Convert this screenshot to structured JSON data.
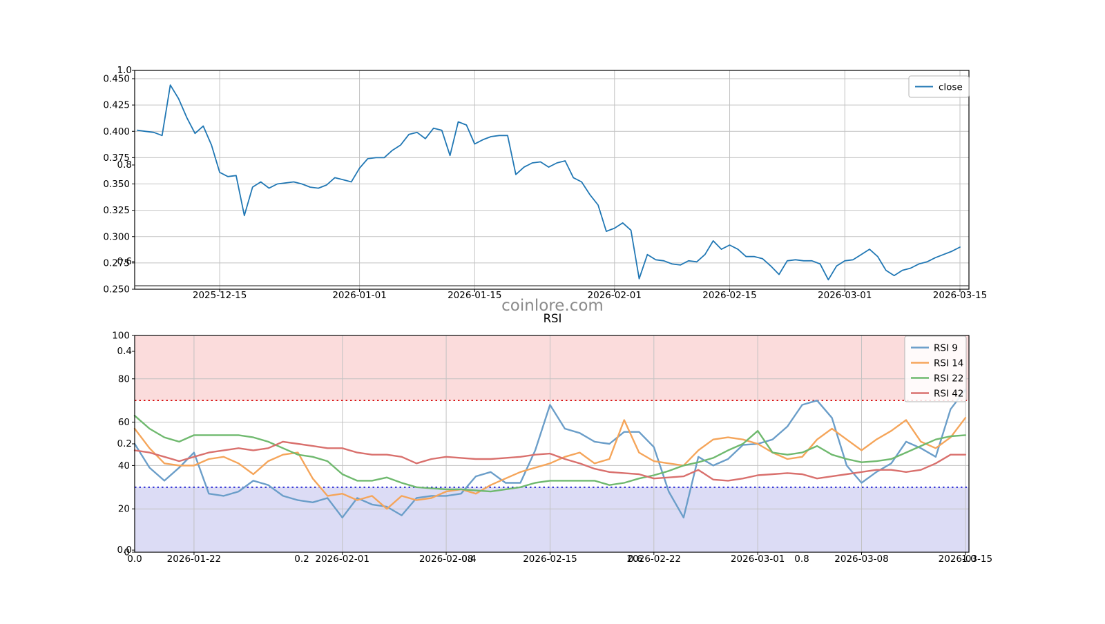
{
  "watermark": "coinlore.com",
  "price_chart": {
    "legend_label": "close"
  },
  "rsi_chart": {
    "title": "RSI",
    "legend": [
      {
        "label": "RSI 9",
        "color": "#6b9ec9"
      },
      {
        "label": "RSI 14",
        "color": "#f5a55a"
      },
      {
        "label": "RSI 22",
        "color": "#6fb96e"
      },
      {
        "label": "RSI 42",
        "color": "#d9706d"
      }
    ],
    "overbought_line": 70,
    "oversold_line": 30
  },
  "overlay_axis": {
    "y_labels": [
      "1.0",
      "0.8",
      "0.6",
      "0.4",
      "0.2",
      "0.0"
    ],
    "x_labels": [
      "0.0",
      "0.2",
      "0.4",
      "0.6",
      "0.8",
      "1.0"
    ]
  },
  "colors": {
    "close_line": "#2077b4",
    "grid": "#c2c2c2",
    "spine": "#000000",
    "overbought_band": "#fbdcdc",
    "oversold_band": "#dcdcf5",
    "overbought_dotted": "#d40000",
    "oversold_dotted": "#0000cd",
    "legend_border": "#b3b3b3"
  },
  "chart_data": [
    {
      "type": "line",
      "title": "",
      "ylabel": "",
      "xlabel": "",
      "grid": true,
      "legend_position": "upper right",
      "ylim": [
        0.25,
        0.458
      ],
      "yticks": [
        {
          "label": "0.450",
          "value": 0.45
        },
        {
          "label": "0.425",
          "value": 0.425
        },
        {
          "label": "0.400",
          "value": 0.4
        },
        {
          "label": "0.375",
          "value": 0.375
        },
        {
          "label": "0.350",
          "value": 0.35
        },
        {
          "label": "0.325",
          "value": 0.325
        },
        {
          "label": "0.300",
          "value": 0.3
        },
        {
          "label": "0.275",
          "value": 0.275
        },
        {
          "label": "0.250",
          "value": 0.25
        }
      ],
      "xticks": [
        {
          "label": "2025-12-15",
          "index": 10
        },
        {
          "label": "2026-01-01",
          "index": 27
        },
        {
          "label": "2026-01-15",
          "index": 41
        },
        {
          "label": "2026-02-01",
          "index": 58
        },
        {
          "label": "2026-02-15",
          "index": 72
        },
        {
          "label": "2026-03-01",
          "index": 86
        },
        {
          "label": "2026-03-15",
          "index": 100
        }
      ],
      "x": [
        "2025-12-05",
        "2025-12-06",
        "2025-12-07",
        "2025-12-08",
        "2025-12-09",
        "2025-12-10",
        "2025-12-11",
        "2025-12-12",
        "2025-12-13",
        "2025-12-14",
        "2025-12-15",
        "2025-12-16",
        "2025-12-17",
        "2025-12-18",
        "2025-12-19",
        "2025-12-20",
        "2025-12-21",
        "2025-12-22",
        "2025-12-23",
        "2025-12-24",
        "2025-12-25",
        "2025-12-26",
        "2025-12-27",
        "2025-12-28",
        "2025-12-29",
        "2025-12-30",
        "2025-12-31",
        "2026-01-01",
        "2026-01-02",
        "2026-01-03",
        "2026-01-04",
        "2026-01-05",
        "2026-01-06",
        "2026-01-07",
        "2026-01-08",
        "2026-01-09",
        "2026-01-10",
        "2026-01-11",
        "2026-01-12",
        "2026-01-13",
        "2026-01-14",
        "2026-01-15",
        "2026-01-16",
        "2026-01-17",
        "2026-01-18",
        "2026-01-19",
        "2026-01-20",
        "2026-01-21",
        "2026-01-22",
        "2026-01-23",
        "2026-01-24",
        "2026-01-25",
        "2026-01-26",
        "2026-01-27",
        "2026-01-28",
        "2026-01-29",
        "2026-01-30",
        "2026-01-31",
        "2026-02-01",
        "2026-02-02",
        "2026-02-03",
        "2026-02-04",
        "2026-02-05",
        "2026-02-06",
        "2026-02-07",
        "2026-02-08",
        "2026-02-09",
        "2026-02-10",
        "2026-02-11",
        "2026-02-12",
        "2026-02-13",
        "2026-02-14",
        "2026-02-15",
        "2026-02-16",
        "2026-02-17",
        "2026-02-18",
        "2026-02-19",
        "2026-02-20",
        "2026-02-21",
        "2026-02-22",
        "2026-02-23",
        "2026-02-24",
        "2026-02-25",
        "2026-02-26",
        "2026-02-27",
        "2026-02-28",
        "2026-03-01",
        "2026-03-02",
        "2026-03-03",
        "2026-03-04",
        "2026-03-05",
        "2026-03-06",
        "2026-03-07",
        "2026-03-08",
        "2026-03-09",
        "2026-03-10",
        "2026-03-11",
        "2026-03-12",
        "2026-03-13",
        "2026-03-14",
        "2026-03-15"
      ],
      "series": [
        {
          "name": "close",
          "color": "#2077b4",
          "width": 1.8,
          "values": [
            0.401,
            0.4,
            0.399,
            0.396,
            0.444,
            0.431,
            0.413,
            0.398,
            0.405,
            0.387,
            0.361,
            0.357,
            0.358,
            0.32,
            0.347,
            0.352,
            0.346,
            0.35,
            0.351,
            0.352,
            0.35,
            0.347,
            0.346,
            0.349,
            0.356,
            0.354,
            0.352,
            0.365,
            0.374,
            0.375,
            0.375,
            0.382,
            0.387,
            0.397,
            0.399,
            0.393,
            0.403,
            0.401,
            0.377,
            0.409,
            0.406,
            0.388,
            0.392,
            0.395,
            0.396,
            0.396,
            0.359,
            0.366,
            0.37,
            0.371,
            0.366,
            0.37,
            0.372,
            0.356,
            0.352,
            0.34,
            0.33,
            0.305,
            0.308,
            0.313,
            0.306,
            0.26,
            0.283,
            0.278,
            0.277,
            0.274,
            0.273,
            0.277,
            0.276,
            0.283,
            0.296,
            0.288,
            0.292,
            0.288,
            0.281,
            0.281,
            0.279,
            0.272,
            0.264,
            0.277,
            0.278,
            0.277,
            0.277,
            0.274,
            0.259,
            0.272,
            0.277,
            0.278,
            0.283,
            0.288,
            0.281,
            0.268,
            0.263,
            0.268,
            0.27,
            0.274,
            0.276,
            0.28,
            0.283,
            0.286,
            0.29
          ]
        }
      ]
    },
    {
      "type": "line",
      "title": "RSI",
      "ylabel": "",
      "xlabel": "",
      "grid": true,
      "legend_position": "upper right",
      "ylim": [
        0,
        100
      ],
      "yticks": [
        {
          "label": "100",
          "value": 100
        },
        {
          "label": "80",
          "value": 80
        },
        {
          "label": "60",
          "value": 60
        },
        {
          "label": "40",
          "value": 40
        },
        {
          "label": "20",
          "value": 20
        },
        {
          "label": "0",
          "value": 0
        }
      ],
      "xticks": [
        {
          "label": "2026-01-22",
          "index": 4
        },
        {
          "label": "2026-02-01",
          "index": 14
        },
        {
          "label": "2026-02-08",
          "index": 21
        },
        {
          "label": "2026-02-15",
          "index": 28
        },
        {
          "label": "2026-02-22",
          "index": 35
        },
        {
          "label": "2026-03-01",
          "index": 42
        },
        {
          "label": "2026-03-08",
          "index": 49
        },
        {
          "label": "2026-03-15",
          "index": 56
        }
      ],
      "bands": [
        {
          "from": 70,
          "to": 100,
          "color": "#fbdcdc",
          "name": "overbought-band"
        },
        {
          "from": 0,
          "to": 30,
          "color": "#dcdcf5",
          "name": "oversold-band"
        }
      ],
      "hlines": [
        {
          "y": 70,
          "color": "#d40000",
          "name": "overbought-line"
        },
        {
          "y": 30,
          "color": "#0000cd",
          "name": "oversold-line"
        }
      ],
      "x": [
        "2026-01-18",
        "2026-01-19",
        "2026-01-20",
        "2026-01-21",
        "2026-01-22",
        "2026-01-23",
        "2026-01-24",
        "2026-01-25",
        "2026-01-26",
        "2026-01-27",
        "2026-01-28",
        "2026-01-29",
        "2026-01-30",
        "2026-01-31",
        "2026-02-01",
        "2026-02-02",
        "2026-02-03",
        "2026-02-04",
        "2026-02-05",
        "2026-02-06",
        "2026-02-07",
        "2026-02-08",
        "2026-02-09",
        "2026-02-10",
        "2026-02-11",
        "2026-02-12",
        "2026-02-13",
        "2026-02-14",
        "2026-02-15",
        "2026-02-16",
        "2026-02-17",
        "2026-02-18",
        "2026-02-19",
        "2026-02-20",
        "2026-02-21",
        "2026-02-22",
        "2026-02-23",
        "2026-02-24",
        "2026-02-25",
        "2026-02-26",
        "2026-02-27",
        "2026-02-28",
        "2026-03-01",
        "2026-03-02",
        "2026-03-03",
        "2026-03-04",
        "2026-03-05",
        "2026-03-06",
        "2026-03-07",
        "2026-03-08",
        "2026-03-09",
        "2026-03-10",
        "2026-03-11",
        "2026-03-12",
        "2026-03-13",
        "2026-03-14",
        "2026-03-15"
      ],
      "series": [
        {
          "name": "RSI 9",
          "color": "#6b9ec9",
          "width": 2.4,
          "values": [
            50,
            39,
            33,
            39,
            46,
            27,
            26,
            28,
            33,
            31,
            26,
            24,
            23,
            25,
            16,
            25,
            22,
            21,
            17,
            25,
            26,
            26,
            27,
            35,
            37,
            32,
            32,
            47,
            68,
            57,
            55,
            51,
            50,
            55.5,
            55.5,
            48.5,
            28,
            16,
            44,
            40,
            43,
            49.5,
            50,
            52,
            58,
            68,
            70,
            62,
            40,
            32,
            37,
            41,
            51,
            48,
            44,
            66,
            75
          ]
        },
        {
          "name": "RSI 14",
          "color": "#f5a55a",
          "width": 2.4,
          "values": [
            57,
            48,
            41,
            40,
            40,
            43,
            44,
            41,
            36,
            42,
            45,
            46,
            34,
            26,
            27,
            24,
            26,
            20,
            26,
            24,
            25,
            28,
            29,
            27,
            31,
            34,
            37,
            39,
            41,
            44,
            46,
            41,
            43,
            61,
            46,
            42,
            41,
            40,
            47,
            52,
            53,
            52,
            50,
            46,
            43,
            44,
            52,
            57,
            52,
            47,
            52,
            56,
            61,
            51,
            48,
            53,
            62
          ]
        },
        {
          "name": "RSI 22",
          "color": "#6fb96e",
          "width": 2.4,
          "values": [
            63,
            57,
            53,
            51,
            54,
            54,
            54,
            54,
            53,
            51,
            48,
            45,
            44,
            42,
            36,
            33,
            33,
            34.5,
            32,
            30,
            29.5,
            29,
            29,
            28.5,
            28,
            29,
            30,
            32,
            33,
            33,
            33,
            33,
            31,
            32,
            34,
            35.5,
            37.5,
            40,
            41.5,
            43.5,
            47,
            50,
            56,
            46,
            45,
            46,
            49,
            45,
            43,
            41.5,
            42,
            43,
            46,
            49,
            52,
            53.5,
            54
          ]
        },
        {
          "name": "RSI 42",
          "color": "#d9706d",
          "width": 2.4,
          "values": [
            47,
            46,
            44,
            42,
            44,
            46,
            47,
            48,
            47,
            48,
            51,
            50,
            49,
            48,
            48,
            46,
            45,
            45,
            44,
            41,
            43,
            44,
            43.5,
            43,
            43,
            43.5,
            44,
            45,
            45.5,
            43,
            41,
            38.5,
            37,
            36.5,
            36,
            34,
            34.5,
            35,
            38,
            33.5,
            33,
            34,
            35.5,
            36,
            36.5,
            36,
            34,
            35,
            36,
            37,
            38,
            38,
            37,
            38,
            41,
            45,
            45
          ]
        }
      ]
    }
  ]
}
